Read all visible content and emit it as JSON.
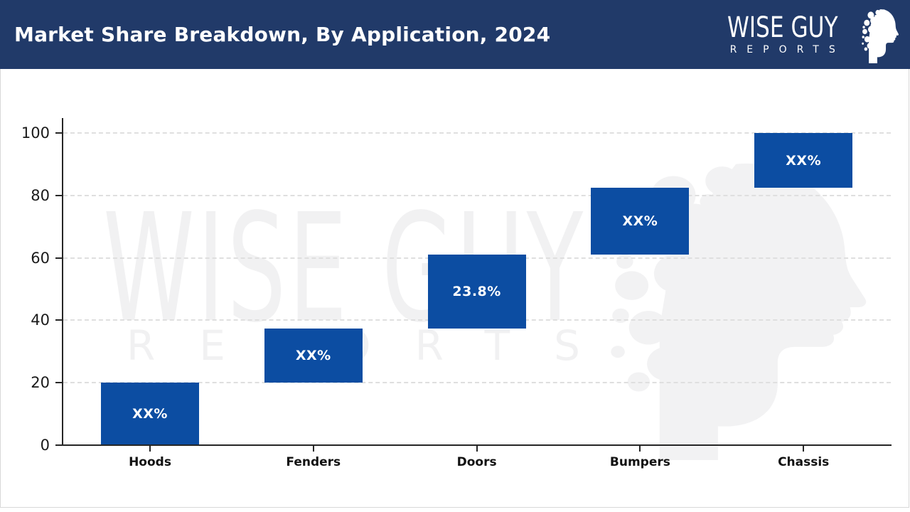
{
  "page": {
    "title": "Market Share Breakdown, By Application, 2024",
    "header_bg": "#213a69",
    "logo": {
      "wordmark": "WISE GUY",
      "subtitle": "REPORTS"
    }
  },
  "watermark": {
    "wordmark": "WISE GUY",
    "subtitle": "REPORTS"
  },
  "chart_data": {
    "type": "bar",
    "subtype": "floating-waterfall",
    "title": "Market Share Breakdown, By Application, 2024",
    "categories": [
      "Hoods",
      "Fenders",
      "Doors",
      "Bumpers",
      "Chassis"
    ],
    "segments": [
      {
        "category": "Hoods",
        "start": 0,
        "end": 20,
        "label": "XX%"
      },
      {
        "category": "Fenders",
        "start": 20,
        "end": 37.3,
        "label": "XX%"
      },
      {
        "category": "Doors",
        "start": 37.3,
        "end": 61.1,
        "label": "23.8%"
      },
      {
        "category": "Bumpers",
        "start": 61.1,
        "end": 82.4,
        "label": "XX%"
      },
      {
        "category": "Chassis",
        "start": 82.4,
        "end": 100,
        "label": "XX%"
      }
    ],
    "y_ticks": [
      0,
      20,
      40,
      60,
      80,
      100
    ],
    "ylim": [
      0,
      100
    ],
    "xlabel": "",
    "ylabel": "",
    "grid": "horizontal-dashed",
    "legend": "none",
    "bar_color": "#0c4da2",
    "bar_label_color": "#ffffff",
    "axis_color": "#262626",
    "gridline_color": "#dfdfdf"
  }
}
